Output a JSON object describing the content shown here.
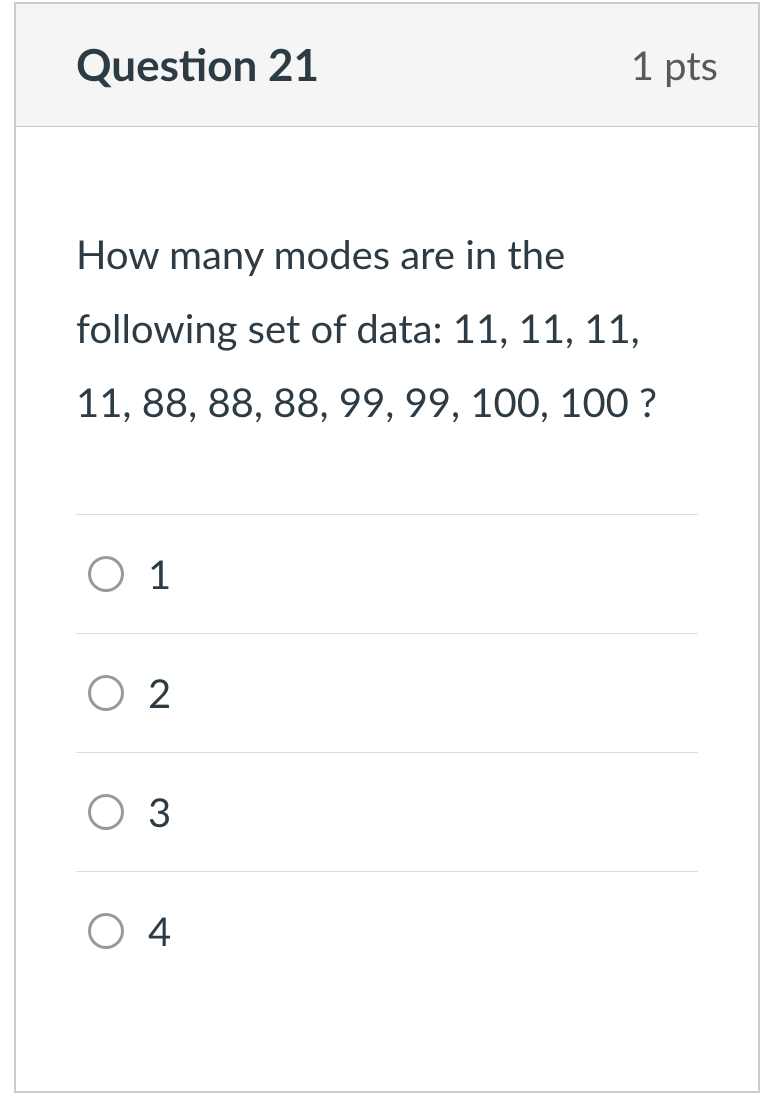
{
  "question": {
    "title": "Question 21",
    "points": "1 pts",
    "text": "How many modes are in the following set of data: 11, 11, 11, 11, 88, 88, 88, 99, 99, 100, 100 ?",
    "answers": [
      {
        "label": "1"
      },
      {
        "label": "2"
      },
      {
        "label": "3"
      },
      {
        "label": "4"
      }
    ]
  },
  "colors": {
    "border": "#c7cdd1",
    "header_bg": "#f5f5f5",
    "text_primary": "#2d3b45",
    "text_secondary": "#595959",
    "divider": "#dddddd",
    "radio_border": "#999999"
  }
}
